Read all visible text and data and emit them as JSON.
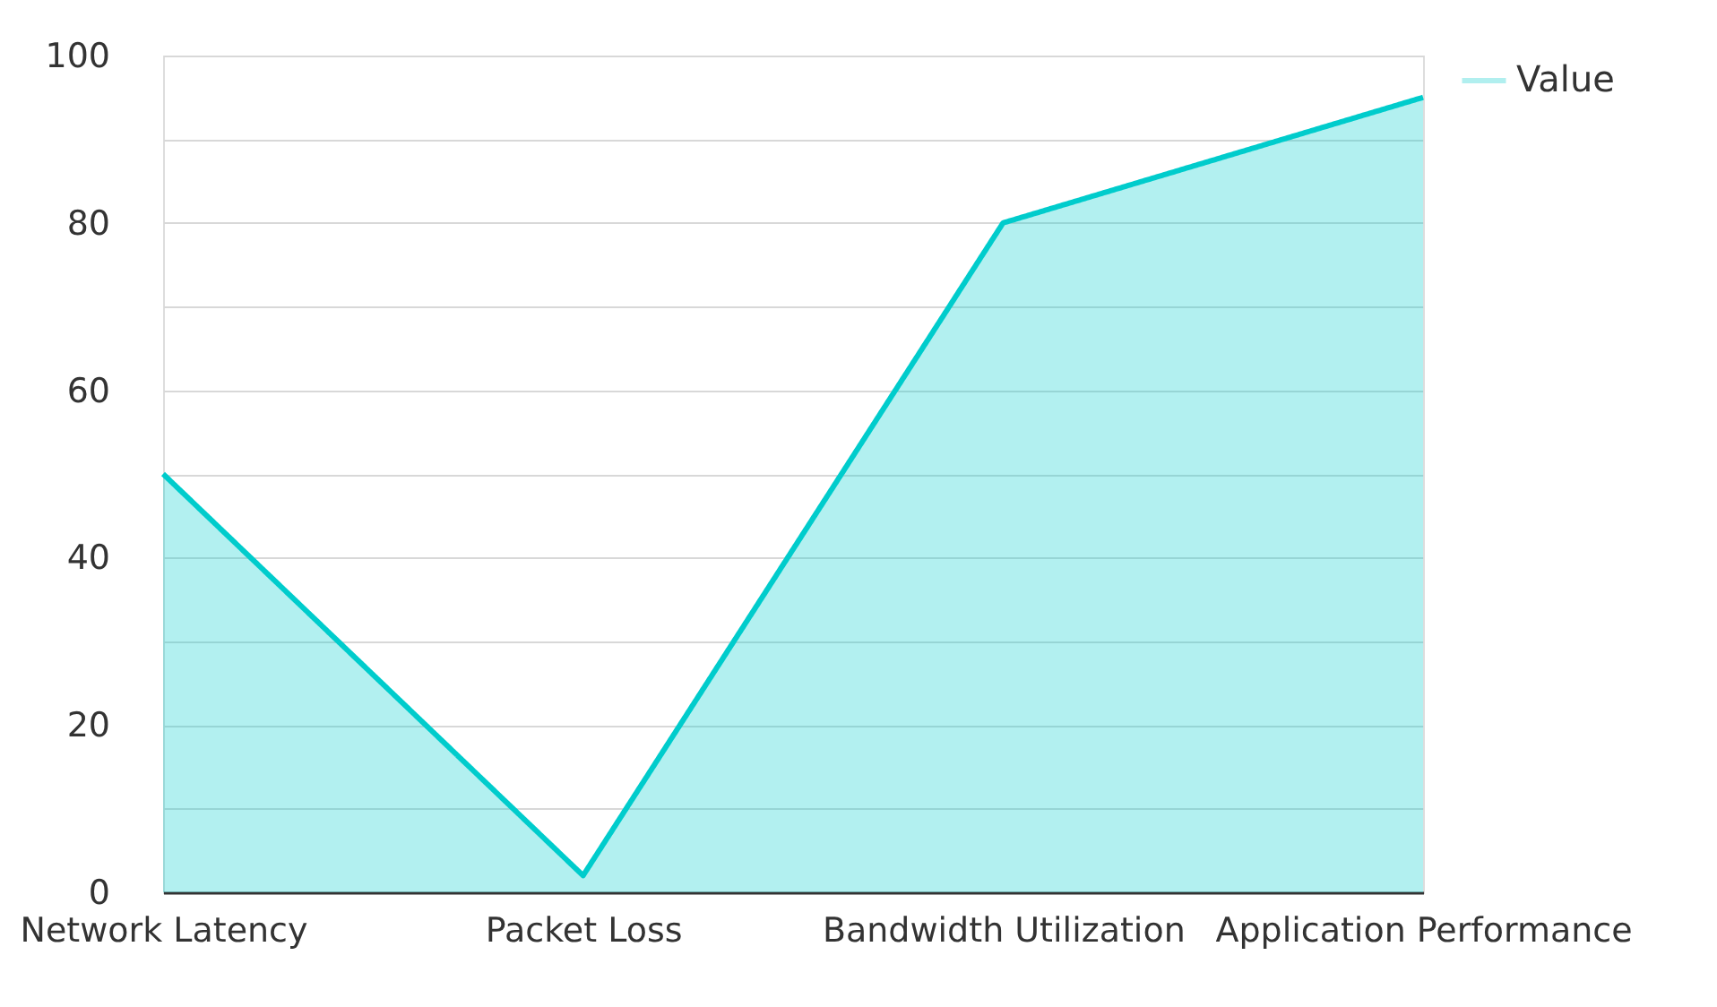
{
  "chart_data": {
    "type": "area",
    "categories": [
      "Network Latency",
      "Packet Loss",
      "Bandwidth Utilization",
      "Application Performance"
    ],
    "series": [
      {
        "name": "Value",
        "color": "#00cccc",
        "values": [
          50,
          2,
          80,
          95
        ]
      }
    ],
    "ylim": [
      0,
      100
    ],
    "yticks": [
      0,
      {
        "value": 10,
        "label": null
      },
      20,
      {
        "value": 30,
        "label": null
      },
      40,
      {
        "value": 50,
        "label": null
      },
      60,
      {
        "value": 70,
        "label": null
      },
      80,
      {
        "value": 90,
        "label": null
      },
      100
    ],
    "grid": "y",
    "legend": "top right",
    "marker": "none",
    "line_style": "solid"
  }
}
